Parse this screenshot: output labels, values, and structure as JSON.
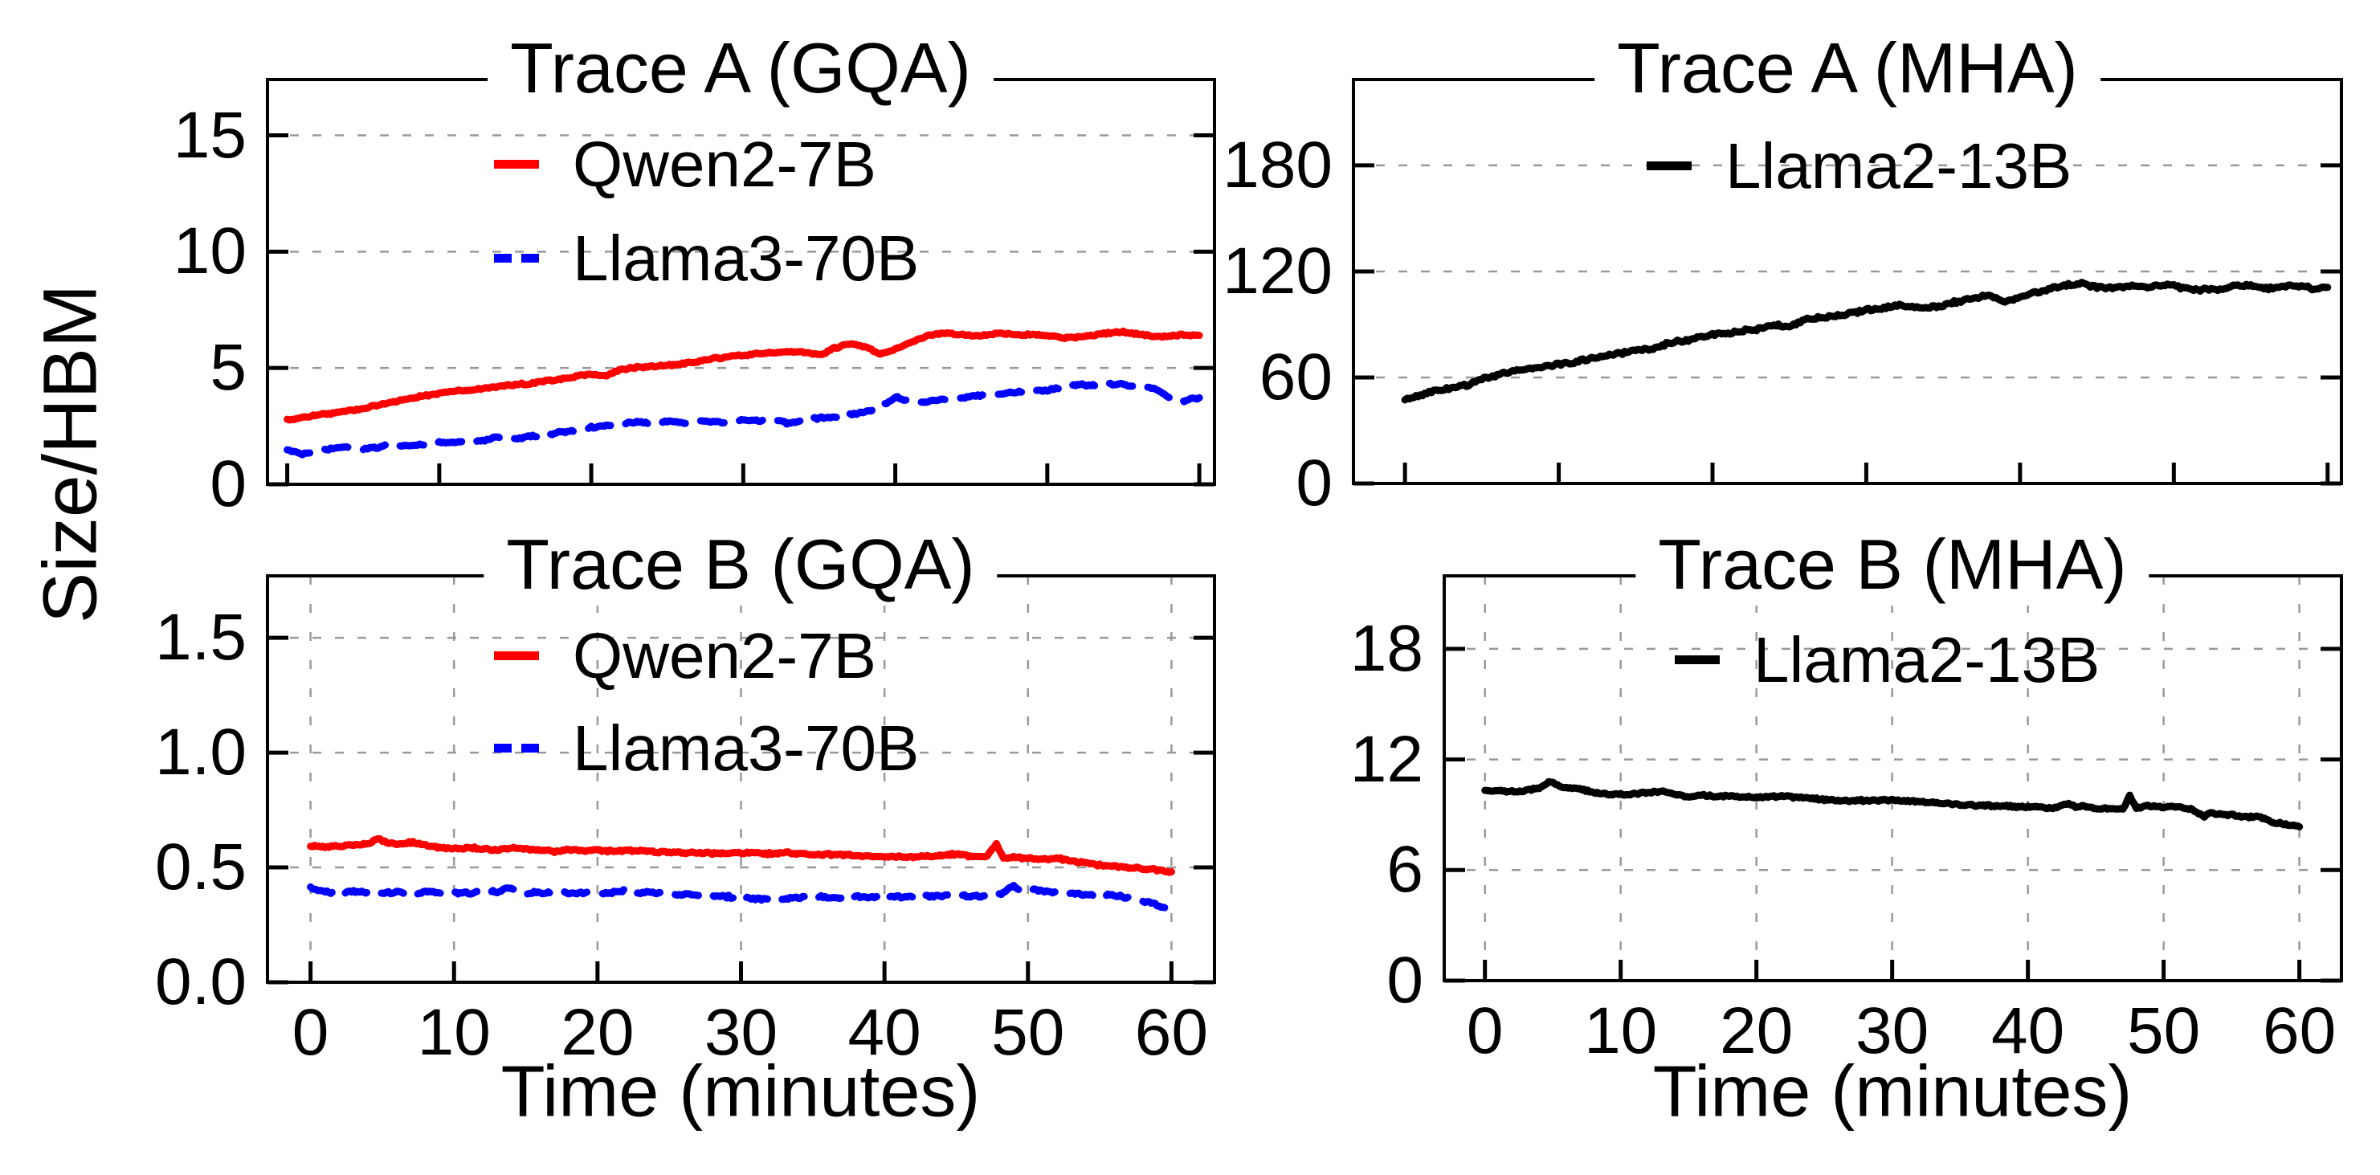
{
  "figure": {
    "ylabel": "Size/HBM",
    "axis_color": "#000000",
    "grid_color": "#999999",
    "background": "#ffffff"
  },
  "chart_data": [
    {
      "id": "trace-a-gqa",
      "type": "line",
      "title": "Trace A (GQA)",
      "xlabel": "",
      "xlim": [
        -1.3,
        61.0
      ],
      "ylim": [
        0,
        17.4
      ],
      "yticks": [
        0,
        5,
        10,
        15
      ],
      "ytick_labels": [
        "0",
        "5",
        "10",
        "15"
      ],
      "xticks": [
        0,
        10,
        20,
        30,
        40,
        50,
        60
      ],
      "xtick_labels": null,
      "vertical_grid": false,
      "legend_position": "upper-left-inside",
      "legend": [
        {
          "label": "Qwen2-7B",
          "color": "#ff0000",
          "style": "solid"
        },
        {
          "label": "Llama3-70B",
          "color": "#0000ff",
          "style": "dashed"
        }
      ],
      "series": [
        {
          "name": "Qwen2-7B",
          "color": "#ff0000",
          "style": "solid",
          "noise": 0.05,
          "x": [
            0,
            1,
            2,
            3,
            4,
            5,
            6,
            7,
            8,
            9,
            10,
            11,
            12,
            13,
            14,
            15,
            16,
            17,
            18,
            19,
            20,
            21,
            22,
            23,
            24,
            25,
            26,
            27,
            28,
            29,
            30,
            31,
            32,
            33,
            34,
            35,
            36,
            37,
            38,
            39,
            40,
            41,
            42,
            43,
            44,
            45,
            46,
            47,
            48,
            49,
            50,
            51,
            52,
            53,
            54,
            55,
            56,
            57,
            58,
            59,
            60
          ],
          "y": [
            2.75,
            2.87,
            3.0,
            3.05,
            3.15,
            3.25,
            3.42,
            3.55,
            3.68,
            3.8,
            3.9,
            4.0,
            4.05,
            4.12,
            4.22,
            4.28,
            4.33,
            4.45,
            4.52,
            4.65,
            4.75,
            4.67,
            4.95,
            5.02,
            5.07,
            5.12,
            5.17,
            5.28,
            5.4,
            5.48,
            5.55,
            5.62,
            5.66,
            5.7,
            5.68,
            5.55,
            5.85,
            6.05,
            5.9,
            5.6,
            5.8,
            6.1,
            6.35,
            6.5,
            6.45,
            6.38,
            6.42,
            6.5,
            6.42,
            6.45,
            6.38,
            6.3,
            6.33,
            6.42,
            6.5,
            6.55,
            6.45,
            6.35,
            6.38,
            6.42,
            6.4
          ]
        },
        {
          "name": "Llama3-70B",
          "color": "#0000ff",
          "style": "dashed",
          "noise": 0.055,
          "x": [
            0,
            1,
            2,
            3,
            4,
            5,
            6,
            7,
            8,
            9,
            10,
            11,
            12,
            13,
            14,
            15,
            16,
            17,
            18,
            19,
            20,
            21,
            22,
            23,
            24,
            25,
            26,
            27,
            28,
            29,
            30,
            31,
            32,
            33,
            34,
            35,
            36,
            37,
            38,
            39,
            40,
            41,
            42,
            43,
            44,
            45,
            46,
            47,
            48,
            49,
            50,
            51,
            52,
            53,
            54,
            55,
            56,
            57,
            58,
            59,
            60
          ],
          "y": [
            1.45,
            1.32,
            1.45,
            1.55,
            1.58,
            1.52,
            1.6,
            1.72,
            1.65,
            1.72,
            1.8,
            1.78,
            1.85,
            1.9,
            2.05,
            1.95,
            2.05,
            2.1,
            2.25,
            2.3,
            2.45,
            2.55,
            2.6,
            2.68,
            2.62,
            2.7,
            2.65,
            2.7,
            2.72,
            2.65,
            2.75,
            2.72,
            2.78,
            2.6,
            2.78,
            2.85,
            2.88,
            3.0,
            3.1,
            3.3,
            3.75,
            3.6,
            3.55,
            3.62,
            3.7,
            3.78,
            3.85,
            3.9,
            3.95,
            4.0,
            4.05,
            4.15,
            4.3,
            4.25,
            4.3,
            4.3,
            4.2,
            4.1,
            3.75,
            3.6,
            3.72
          ]
        }
      ]
    },
    {
      "id": "trace-a-mha",
      "type": "line",
      "title": "Trace A (MHA)",
      "xlabel": "",
      "xlim": [
        -3.35,
        60.9
      ],
      "ylim": [
        0,
        228.6
      ],
      "yticks": [
        0,
        60,
        120,
        180
      ],
      "ytick_labels": [
        "0",
        "60",
        "120",
        "180"
      ],
      "xticks": [
        0,
        10,
        20,
        30,
        40,
        50,
        60
      ],
      "xtick_labels": null,
      "vertical_grid": false,
      "legend_position": "upper-center-inside",
      "legend": [
        {
          "label": "Llama2-13B",
          "color": "#000000",
          "style": "solid"
        }
      ],
      "series": [
        {
          "name": "Llama2-13B",
          "color": "#000000",
          "style": "solid",
          "noise": 1.1,
          "x": [
            0,
            1,
            2,
            3,
            4,
            5,
            6,
            7,
            8,
            9,
            10,
            11,
            12,
            13,
            14,
            15,
            16,
            17,
            18,
            19,
            20,
            21,
            22,
            23,
            24,
            25,
            26,
            27,
            28,
            29,
            30,
            31,
            32,
            33,
            34,
            35,
            36,
            37,
            38,
            39,
            40,
            41,
            42,
            43,
            44,
            45,
            46,
            47,
            48,
            49,
            50,
            51,
            52,
            53,
            54,
            55,
            56,
            57,
            58,
            59,
            60
          ],
          "y": [
            47.5,
            50,
            52.5,
            54,
            55.5,
            59,
            61.5,
            63.5,
            65,
            66,
            67.5,
            68.5,
            70.5,
            72,
            73.5,
            75.5,
            76,
            79,
            80.5,
            82.5,
            84,
            85,
            86.5,
            87.5,
            90,
            88.5,
            92.5,
            93.5,
            95,
            96.5,
            98,
            99,
            100.5,
            100,
            99.5,
            101,
            103,
            105,
            106.5,
            102.5,
            105.5,
            108,
            110.5,
            112,
            113,
            111,
            110.5,
            111.5,
            111,
            112,
            112,
            110,
            109.5,
            110,
            112,
            112,
            110.5,
            111.5,
            112,
            110.5,
            111
          ]
        }
      ]
    },
    {
      "id": "trace-b-gqa",
      "type": "line",
      "title": "Trace B (GQA)",
      "xlabel": "Time (minutes)",
      "xlim": [
        -3.0,
        63.0
      ],
      "ylim": [
        0,
        1.77
      ],
      "yticks": [
        0,
        0.5,
        1.0,
        1.5
      ],
      "ytick_labels": [
        "0.0",
        "0.5",
        "1.0",
        "1.5"
      ],
      "xticks": [
        0,
        10,
        20,
        30,
        40,
        50,
        60
      ],
      "xtick_labels": [
        "0",
        "10",
        "20",
        "30",
        "40",
        "50",
        "60"
      ],
      "vertical_grid": true,
      "legend_position": "upper-left-inside",
      "legend": [
        {
          "label": "Qwen2-7B",
          "color": "#ff0000",
          "style": "solid"
        },
        {
          "label": "Llama3-70B",
          "color": "#0000ff",
          "style": "dashed"
        }
      ],
      "series": [
        {
          "name": "Qwen2-7B",
          "color": "#ff0000",
          "style": "solid",
          "noise": 0.006,
          "x": [
            0,
            1,
            2,
            3,
            4,
            4.7,
            5.5,
            6,
            7,
            8,
            9,
            10,
            11,
            12,
            13,
            14,
            15,
            16,
            17,
            18,
            19,
            20,
            21,
            22,
            23,
            24,
            25,
            26,
            27,
            28,
            29,
            30,
            31,
            32,
            33,
            34,
            35,
            36,
            37,
            38,
            39,
            40,
            41,
            42,
            43,
            44,
            45,
            46,
            47,
            47.8,
            48.3,
            49,
            50,
            51,
            52,
            53,
            54,
            55,
            56,
            57,
            58,
            59,
            60
          ],
          "y": [
            0.595,
            0.588,
            0.592,
            0.598,
            0.605,
            0.625,
            0.606,
            0.6,
            0.61,
            0.596,
            0.588,
            0.582,
            0.586,
            0.58,
            0.576,
            0.585,
            0.58,
            0.576,
            0.57,
            0.578,
            0.572,
            0.576,
            0.57,
            0.574,
            0.571,
            0.569,
            0.566,
            0.562,
            0.565,
            0.56,
            0.564,
            0.562,
            0.565,
            0.56,
            0.564,
            0.561,
            0.558,
            0.555,
            0.557,
            0.55,
            0.548,
            0.545,
            0.548,
            0.545,
            0.549,
            0.552,
            0.559,
            0.548,
            0.544,
            0.601,
            0.54,
            0.545,
            0.54,
            0.536,
            0.54,
            0.53,
            0.52,
            0.51,
            0.504,
            0.499,
            0.494,
            0.489,
            0.481
          ]
        },
        {
          "name": "Llama3-70B",
          "color": "#0000ff",
          "style": "dashed",
          "noise": 0.007,
          "x": [
            0,
            0.5,
            1,
            2,
            3,
            4,
            5,
            6,
            7,
            8,
            9,
            10,
            11,
            12,
            13,
            14,
            14.5,
            15,
            16,
            17,
            18,
            19,
            20,
            21,
            22,
            22.5,
            23,
            24,
            25,
            26,
            27,
            28,
            29,
            30,
            31,
            32,
            33,
            34,
            35,
            36,
            37,
            38,
            39,
            40,
            41,
            42,
            43,
            44,
            45,
            46,
            47,
            48,
            49,
            49.5,
            50,
            51,
            52,
            53,
            54,
            55,
            56,
            57,
            58,
            59,
            60
          ],
          "y": [
            0.418,
            0.398,
            0.395,
            0.39,
            0.397,
            0.392,
            0.388,
            0.393,
            0.388,
            0.392,
            0.387,
            0.392,
            0.388,
            0.398,
            0.392,
            0.415,
            0.39,
            0.388,
            0.391,
            0.388,
            0.389,
            0.391,
            0.387,
            0.389,
            0.405,
            0.39,
            0.391,
            0.388,
            0.386,
            0.383,
            0.378,
            0.376,
            0.373,
            0.369,
            0.364,
            0.359,
            0.364,
            0.369,
            0.376,
            0.371,
            0.369,
            0.373,
            0.371,
            0.374,
            0.371,
            0.374,
            0.377,
            0.374,
            0.377,
            0.374,
            0.377,
            0.38,
            0.418,
            0.398,
            0.403,
            0.398,
            0.393,
            0.388,
            0.383,
            0.379,
            0.376,
            0.368,
            0.354,
            0.338,
            0.316
          ]
        }
      ]
    },
    {
      "id": "trace-b-mha",
      "type": "line",
      "title": "Trace B (MHA)",
      "xlabel": "Time (minutes)",
      "xlim": [
        -3.0,
        63.1
      ],
      "ylim": [
        0,
        21.96
      ],
      "yticks": [
        0,
        6,
        12,
        18
      ],
      "ytick_labels": [
        "0",
        "6",
        "12",
        "18"
      ],
      "xticks": [
        0,
        10,
        20,
        30,
        40,
        50,
        60
      ],
      "xtick_labels": [
        "0",
        "10",
        "20",
        "30",
        "40",
        "50",
        "60"
      ],
      "vertical_grid": true,
      "legend_position": "upper-center-inside",
      "legend": [
        {
          "label": "Llama2-13B",
          "color": "#000000",
          "style": "solid"
        }
      ],
      "series": [
        {
          "name": "Llama2-13B",
          "color": "#000000",
          "style": "solid",
          "noise": 0.07,
          "x": [
            0,
            1,
            2,
            3,
            4,
            4.7,
            5.5,
            6,
            7,
            8,
            9,
            10,
            11,
            12,
            13,
            14,
            15,
            16,
            17,
            18,
            19,
            20,
            21,
            22,
            23,
            24,
            25,
            26,
            27,
            28,
            29,
            30,
            31,
            32,
            33,
            34,
            35,
            36,
            37,
            38,
            39,
            40,
            41,
            42,
            43,
            43.5,
            44,
            45,
            46,
            47,
            47.5,
            48,
            49,
            50,
            51,
            52,
            53,
            53.5,
            54,
            55,
            56,
            57,
            58,
            59,
            60
          ],
          "y": [
            10.3,
            10.28,
            10.25,
            10.3,
            10.45,
            10.8,
            10.55,
            10.45,
            10.42,
            10.2,
            10.12,
            10.1,
            10.15,
            10.2,
            10.28,
            10.1,
            9.95,
            10.05,
            10.0,
            10.02,
            9.98,
            9.95,
            9.98,
            10.0,
            9.95,
            9.9,
            9.82,
            9.78,
            9.75,
            9.78,
            9.8,
            9.8,
            9.75,
            9.7,
            9.65,
            9.6,
            9.55,
            9.52,
            9.5,
            9.48,
            9.45,
            9.43,
            9.4,
            9.38,
            9.6,
            9.45,
            9.5,
            9.35,
            9.3,
            9.3,
            10.0,
            9.35,
            9.5,
            9.42,
            9.46,
            9.3,
            8.9,
            9.1,
            9.05,
            9.0,
            8.85,
            8.9,
            8.6,
            8.5,
            8.35
          ]
        }
      ]
    }
  ]
}
